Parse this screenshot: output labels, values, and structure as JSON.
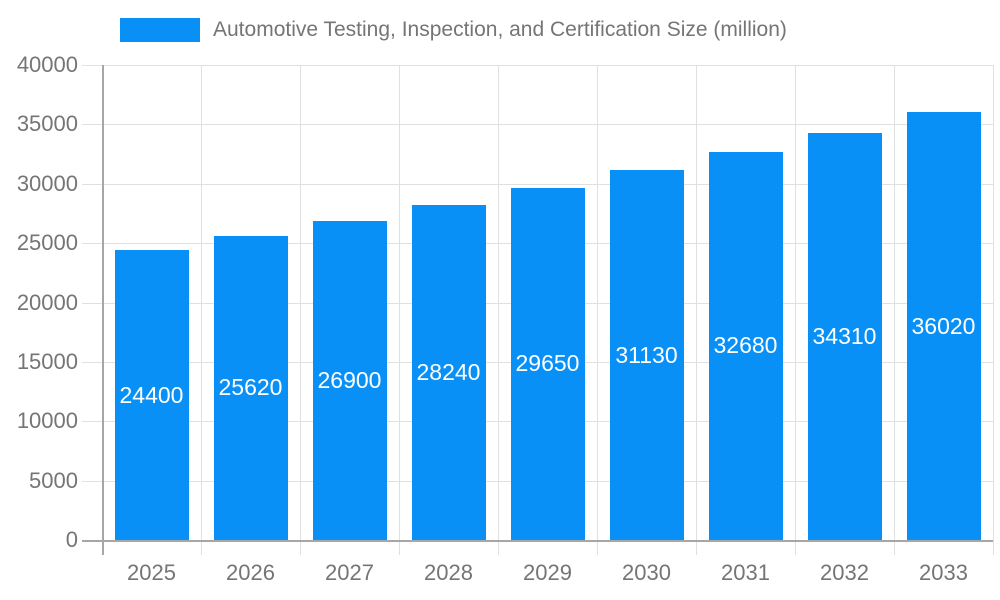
{
  "legend": {
    "label": "Automotive Testing, Inspection, and Certification Size (million)"
  },
  "colors": {
    "bar": "#0990f6",
    "grid": "#e0e0e0",
    "axis": "#a6a6a6",
    "text": "#757575",
    "bar_label": "#ffffff",
    "background": "#ffffff"
  },
  "chart_data": {
    "type": "bar",
    "title": "Automotive Testing, Inspection, and Certification Size (million)",
    "categories": [
      "2025",
      "2026",
      "2027",
      "2028",
      "2029",
      "2030",
      "2031",
      "2032",
      "2033"
    ],
    "values": [
      24400,
      25620,
      26900,
      28240,
      29650,
      31130,
      32680,
      34310,
      36020
    ],
    "series": [
      {
        "name": "Automotive Testing, Inspection, and Certification Size (million)",
        "values": [
          24400,
          25620,
          26900,
          28240,
          29650,
          31130,
          32680,
          34310,
          36020
        ]
      }
    ],
    "xlabel": "",
    "ylabel": "",
    "ylim": [
      0,
      40000
    ],
    "ytick_step": 5000,
    "yticks": [
      0,
      5000,
      10000,
      15000,
      20000,
      25000,
      30000,
      35000,
      40000
    ],
    "grid": "horizontal-and-vertical",
    "legend_position": "top-left",
    "bar_labels_inside": true
  }
}
